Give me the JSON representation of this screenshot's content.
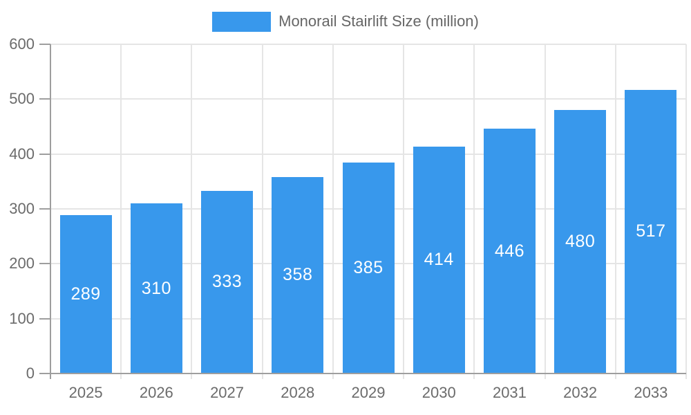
{
  "legend": {
    "series_label": "Monorail Stairlift Size (million)"
  },
  "chart_data": {
    "type": "bar",
    "title": "Monorail Stairlift Size (million)",
    "categories": [
      "2025",
      "2026",
      "2027",
      "2028",
      "2029",
      "2030",
      "2031",
      "2032",
      "2033"
    ],
    "values": [
      289,
      310,
      333,
      358,
      385,
      414,
      446,
      480,
      517
    ],
    "xlabel": "",
    "ylabel": "",
    "ylim": [
      0,
      600
    ],
    "yticks": [
      0,
      100,
      200,
      300,
      400,
      500,
      600
    ],
    "grid": true,
    "legend_position": "top",
    "value_label_position": "inside-center",
    "colors": {
      "bar": "#3898EC",
      "value_label": "#FFFFFF",
      "grid": "#E5E5E5",
      "axis": "#9E9E9E",
      "tick_text": "#6B6B6B",
      "legend_text": "#666666",
      "background": "#FFFFFF"
    }
  }
}
